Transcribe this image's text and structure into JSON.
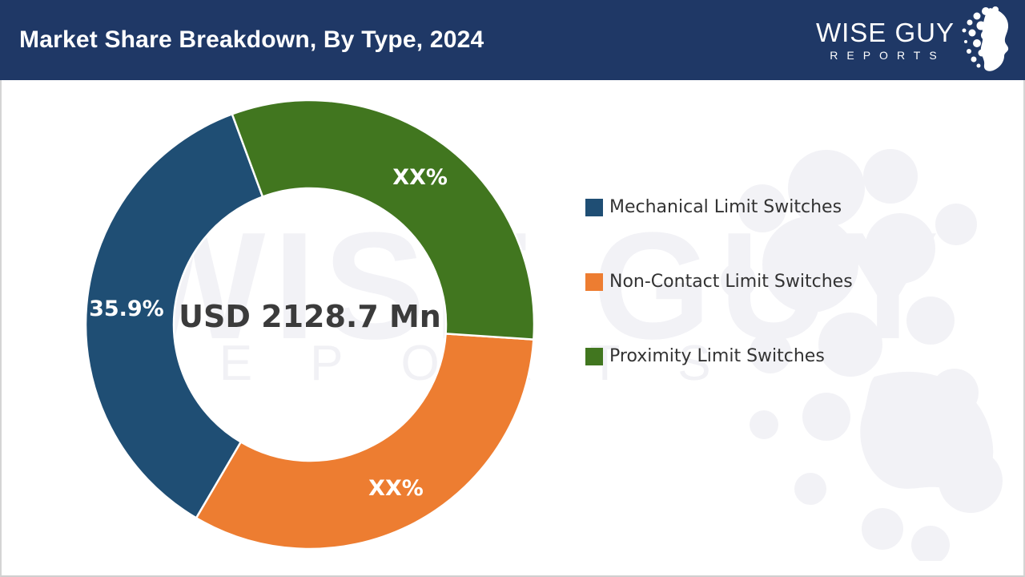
{
  "header": {
    "title": "Market Share Breakdown, By Type, 2024",
    "bg_color": "#1f3866",
    "logo": {
      "line1": "WISE GUY",
      "line2": "REPORTS"
    }
  },
  "watermark": {
    "line1": "WISE GUY",
    "line2": "REPORTS"
  },
  "chart_data": {
    "type": "pie",
    "subtype": "donut",
    "title": "Market Share Breakdown, By Type, 2024",
    "center_label": "USD 2128.7 Mn",
    "units": "% market share",
    "direction": "clockwise",
    "start_angle_deg": -20.3,
    "legend_position": "right",
    "series": [
      {
        "name": "Mechanical Limit Switches",
        "value": 35.9,
        "label": "35.9%",
        "color": "#1f4e74"
      },
      {
        "name": "Non-Contact Limit Switches",
        "value": 32.4,
        "label": "XX%",
        "color": "#ed7d31"
      },
      {
        "name": "Proximity Limit Switches",
        "value": 31.7,
        "label": "XX%",
        "color": "#41761f"
      }
    ],
    "draw_order": [
      "Proximity Limit Switches",
      "Non-Contact Limit Switches",
      "Mechanical Limit Switches"
    ]
  },
  "colors": {
    "header_bg": "#1f3866",
    "border": "#d4d4d4",
    "center_text": "#3b3b3b",
    "legend_text": "#333333",
    "slice_label_text": "#ffffff",
    "watermark": "#f2f2f6"
  }
}
